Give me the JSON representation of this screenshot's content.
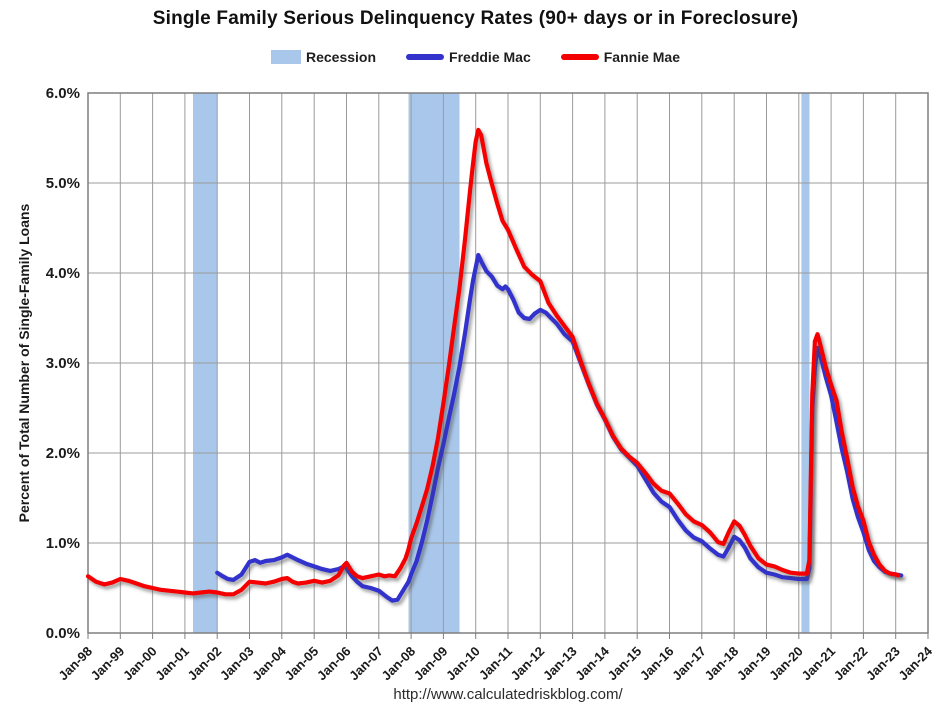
{
  "footer_url": "http://www.calculatedriskblog.com/",
  "colors": {
    "recession_fill": "#a9c7ea",
    "freddie_blue": "#3333cc",
    "fannie_red": "#f50000",
    "grid": "#9b9b9b",
    "axis": "#7f7f7f",
    "text": "#1a1a1a"
  },
  "chart_data": {
    "type": "line",
    "title": "Single Family Serious Delinquency Rates (90+ days or in Foreclosure)",
    "ylabel": "Percent of Total Number of Single-Family Loans",
    "xlabel": "",
    "grid": true,
    "legend_position": "top",
    "legend_labels": [
      "Recession",
      "Freddie Mac",
      "Fannie Mae"
    ],
    "x_range": [
      1998,
      2024
    ],
    "ylim": [
      0,
      6
    ],
    "y_ticks": [
      "0.0%",
      "1.0%",
      "2.0%",
      "3.0%",
      "4.0%",
      "5.0%",
      "6.0%"
    ],
    "x_ticks": [
      "Jan-98",
      "Jan-99",
      "Jan-00",
      "Jan-01",
      "Jan-02",
      "Jan-03",
      "Jan-04",
      "Jan-05",
      "Jan-06",
      "Jan-07",
      "Jan-08",
      "Jan-09",
      "Jan-10",
      "Jan-11",
      "Jan-12",
      "Jan-13",
      "Jan-14",
      "Jan-15",
      "Jan-16",
      "Jan-17",
      "Jan-18",
      "Jan-19",
      "Jan-20",
      "Jan-21",
      "Jan-22",
      "Jan-23",
      "Jan-24"
    ],
    "recession_bands": [
      [
        2001.25,
        2002.0
      ],
      [
        2007.92,
        2009.5
      ],
      [
        2020.08,
        2020.33
      ]
    ],
    "series": [
      {
        "name": "Freddie Mac",
        "color": "#3333cc",
        "points": [
          [
            2002.0,
            0.67
          ],
          [
            2002.17,
            0.63
          ],
          [
            2002.33,
            0.6
          ],
          [
            2002.5,
            0.59
          ],
          [
            2002.75,
            0.65
          ],
          [
            2003.0,
            0.79
          ],
          [
            2003.17,
            0.81
          ],
          [
            2003.33,
            0.78
          ],
          [
            2003.5,
            0.8
          ],
          [
            2003.75,
            0.81
          ],
          [
            2004.0,
            0.84
          ],
          [
            2004.17,
            0.87
          ],
          [
            2004.33,
            0.84
          ],
          [
            2004.5,
            0.81
          ],
          [
            2004.75,
            0.77
          ],
          [
            2005.0,
            0.74
          ],
          [
            2005.25,
            0.71
          ],
          [
            2005.5,
            0.69
          ],
          [
            2005.75,
            0.71
          ],
          [
            2005.92,
            0.74
          ],
          [
            2006.0,
            0.72
          ],
          [
            2006.17,
            0.63
          ],
          [
            2006.33,
            0.57
          ],
          [
            2006.5,
            0.52
          ],
          [
            2006.75,
            0.5
          ],
          [
            2007.0,
            0.47
          ],
          [
            2007.25,
            0.4
          ],
          [
            2007.42,
            0.36
          ],
          [
            2007.58,
            0.37
          ],
          [
            2007.75,
            0.47
          ],
          [
            2007.92,
            0.57
          ],
          [
            2008.0,
            0.65
          ],
          [
            2008.17,
            0.8
          ],
          [
            2008.33,
            1.0
          ],
          [
            2008.5,
            1.25
          ],
          [
            2008.67,
            1.54
          ],
          [
            2008.83,
            1.83
          ],
          [
            2009.0,
            2.1
          ],
          [
            2009.17,
            2.39
          ],
          [
            2009.33,
            2.65
          ],
          [
            2009.5,
            2.96
          ],
          [
            2009.67,
            3.33
          ],
          [
            2009.83,
            3.72
          ],
          [
            2009.92,
            3.92
          ],
          [
            2010.0,
            4.06
          ],
          [
            2010.08,
            4.2
          ],
          [
            2010.17,
            4.13
          ],
          [
            2010.33,
            4.02
          ],
          [
            2010.5,
            3.96
          ],
          [
            2010.67,
            3.86
          ],
          [
            2010.83,
            3.82
          ],
          [
            2010.92,
            3.85
          ],
          [
            2011.0,
            3.82
          ],
          [
            2011.17,
            3.7
          ],
          [
            2011.33,
            3.56
          ],
          [
            2011.5,
            3.5
          ],
          [
            2011.67,
            3.49
          ],
          [
            2011.83,
            3.55
          ],
          [
            2012.0,
            3.59
          ],
          [
            2012.17,
            3.56
          ],
          [
            2012.33,
            3.5
          ],
          [
            2012.5,
            3.44
          ],
          [
            2012.75,
            3.32
          ],
          [
            2013.0,
            3.24
          ],
          [
            2013.25,
            3.0
          ],
          [
            2013.5,
            2.76
          ],
          [
            2013.75,
            2.54
          ],
          [
            2014.0,
            2.37
          ],
          [
            2014.25,
            2.18
          ],
          [
            2014.5,
            2.04
          ],
          [
            2014.75,
            1.95
          ],
          [
            2015.0,
            1.86
          ],
          [
            2015.25,
            1.71
          ],
          [
            2015.5,
            1.56
          ],
          [
            2015.75,
            1.46
          ],
          [
            2016.0,
            1.4
          ],
          [
            2016.25,
            1.26
          ],
          [
            2016.5,
            1.14
          ],
          [
            2016.75,
            1.06
          ],
          [
            2017.0,
            1.02
          ],
          [
            2017.25,
            0.94
          ],
          [
            2017.5,
            0.87
          ],
          [
            2017.67,
            0.85
          ],
          [
            2017.83,
            0.95
          ],
          [
            2018.0,
            1.07
          ],
          [
            2018.17,
            1.03
          ],
          [
            2018.33,
            0.95
          ],
          [
            2018.5,
            0.83
          ],
          [
            2018.75,
            0.73
          ],
          [
            2019.0,
            0.67
          ],
          [
            2019.25,
            0.65
          ],
          [
            2019.5,
            0.62
          ],
          [
            2019.75,
            0.61
          ],
          [
            2020.0,
            0.6
          ],
          [
            2020.25,
            0.6
          ],
          [
            2020.33,
            0.72
          ],
          [
            2020.42,
            2.48
          ],
          [
            2020.5,
            2.95
          ],
          [
            2020.58,
            3.17
          ],
          [
            2020.67,
            3.08
          ],
          [
            2020.83,
            2.85
          ],
          [
            2021.0,
            2.64
          ],
          [
            2021.17,
            2.34
          ],
          [
            2021.33,
            2.05
          ],
          [
            2021.5,
            1.79
          ],
          [
            2021.67,
            1.49
          ],
          [
            2021.83,
            1.29
          ],
          [
            2022.0,
            1.12
          ],
          [
            2022.17,
            0.92
          ],
          [
            2022.33,
            0.8
          ],
          [
            2022.5,
            0.73
          ],
          [
            2022.67,
            0.68
          ],
          [
            2022.83,
            0.66
          ],
          [
            2023.0,
            0.65
          ],
          [
            2023.17,
            0.64
          ]
        ]
      },
      {
        "name": "Fannie Mae",
        "color": "#f50000",
        "points": [
          [
            1998.0,
            0.63
          ],
          [
            1998.25,
            0.57
          ],
          [
            1998.5,
            0.54
          ],
          [
            1998.75,
            0.56
          ],
          [
            1999.0,
            0.6
          ],
          [
            1999.25,
            0.58
          ],
          [
            1999.5,
            0.55
          ],
          [
            1999.75,
            0.52
          ],
          [
            2000.0,
            0.5
          ],
          [
            2000.25,
            0.48
          ],
          [
            2000.5,
            0.47
          ],
          [
            2000.75,
            0.46
          ],
          [
            2001.0,
            0.45
          ],
          [
            2001.25,
            0.44
          ],
          [
            2001.5,
            0.45
          ],
          [
            2001.75,
            0.46
          ],
          [
            2002.0,
            0.45
          ],
          [
            2002.25,
            0.43
          ],
          [
            2002.5,
            0.43
          ],
          [
            2002.75,
            0.48
          ],
          [
            2003.0,
            0.57
          ],
          [
            2003.25,
            0.56
          ],
          [
            2003.5,
            0.55
          ],
          [
            2003.75,
            0.57
          ],
          [
            2004.0,
            0.6
          ],
          [
            2004.17,
            0.61
          ],
          [
            2004.33,
            0.57
          ],
          [
            2004.5,
            0.55
          ],
          [
            2004.75,
            0.56
          ],
          [
            2005.0,
            0.58
          ],
          [
            2005.25,
            0.56
          ],
          [
            2005.5,
            0.58
          ],
          [
            2005.75,
            0.64
          ],
          [
            2005.92,
            0.75
          ],
          [
            2006.0,
            0.78
          ],
          [
            2006.17,
            0.68
          ],
          [
            2006.33,
            0.63
          ],
          [
            2006.5,
            0.61
          ],
          [
            2006.75,
            0.63
          ],
          [
            2007.0,
            0.65
          ],
          [
            2007.17,
            0.63
          ],
          [
            2007.33,
            0.64
          ],
          [
            2007.5,
            0.63
          ],
          [
            2007.67,
            0.72
          ],
          [
            2007.83,
            0.83
          ],
          [
            2007.92,
            0.93
          ],
          [
            2008.0,
            1.05
          ],
          [
            2008.17,
            1.22
          ],
          [
            2008.33,
            1.4
          ],
          [
            2008.5,
            1.6
          ],
          [
            2008.67,
            1.86
          ],
          [
            2008.83,
            2.16
          ],
          [
            2009.0,
            2.55
          ],
          [
            2009.17,
            2.97
          ],
          [
            2009.33,
            3.39
          ],
          [
            2009.5,
            3.83
          ],
          [
            2009.67,
            4.37
          ],
          [
            2009.83,
            4.93
          ],
          [
            2009.92,
            5.22
          ],
          [
            2010.0,
            5.46
          ],
          [
            2010.08,
            5.59
          ],
          [
            2010.17,
            5.53
          ],
          [
            2010.33,
            5.22
          ],
          [
            2010.5,
            4.99
          ],
          [
            2010.67,
            4.77
          ],
          [
            2010.83,
            4.58
          ],
          [
            2011.0,
            4.48
          ],
          [
            2011.25,
            4.27
          ],
          [
            2011.5,
            4.07
          ],
          [
            2011.75,
            3.98
          ],
          [
            2012.0,
            3.91
          ],
          [
            2012.25,
            3.67
          ],
          [
            2012.5,
            3.53
          ],
          [
            2012.75,
            3.41
          ],
          [
            2013.0,
            3.29
          ],
          [
            2013.25,
            3.02
          ],
          [
            2013.5,
            2.77
          ],
          [
            2013.75,
            2.55
          ],
          [
            2014.0,
            2.38
          ],
          [
            2014.25,
            2.19
          ],
          [
            2014.5,
            2.05
          ],
          [
            2014.75,
            1.96
          ],
          [
            2015.0,
            1.89
          ],
          [
            2015.25,
            1.78
          ],
          [
            2015.5,
            1.66
          ],
          [
            2015.75,
            1.58
          ],
          [
            2016.0,
            1.55
          ],
          [
            2016.25,
            1.44
          ],
          [
            2016.5,
            1.32
          ],
          [
            2016.75,
            1.24
          ],
          [
            2017.0,
            1.2
          ],
          [
            2017.25,
            1.12
          ],
          [
            2017.5,
            1.01
          ],
          [
            2017.67,
            0.99
          ],
          [
            2017.83,
            1.12
          ],
          [
            2018.0,
            1.24
          ],
          [
            2018.17,
            1.19
          ],
          [
            2018.33,
            1.09
          ],
          [
            2018.5,
            0.97
          ],
          [
            2018.75,
            0.83
          ],
          [
            2019.0,
            0.76
          ],
          [
            2019.25,
            0.74
          ],
          [
            2019.5,
            0.7
          ],
          [
            2019.75,
            0.67
          ],
          [
            2020.0,
            0.66
          ],
          [
            2020.25,
            0.66
          ],
          [
            2020.33,
            0.81
          ],
          [
            2020.42,
            2.65
          ],
          [
            2020.5,
            3.24
          ],
          [
            2020.58,
            3.32
          ],
          [
            2020.67,
            3.2
          ],
          [
            2020.83,
            2.96
          ],
          [
            2021.0,
            2.76
          ],
          [
            2021.17,
            2.58
          ],
          [
            2021.33,
            2.24
          ],
          [
            2021.5,
            1.94
          ],
          [
            2021.67,
            1.62
          ],
          [
            2021.83,
            1.41
          ],
          [
            2022.0,
            1.25
          ],
          [
            2022.17,
            1.01
          ],
          [
            2022.33,
            0.87
          ],
          [
            2022.5,
            0.76
          ],
          [
            2022.67,
            0.69
          ],
          [
            2022.83,
            0.66
          ],
          [
            2023.0,
            0.65
          ],
          [
            2023.08,
            0.64
          ]
        ]
      }
    ]
  }
}
